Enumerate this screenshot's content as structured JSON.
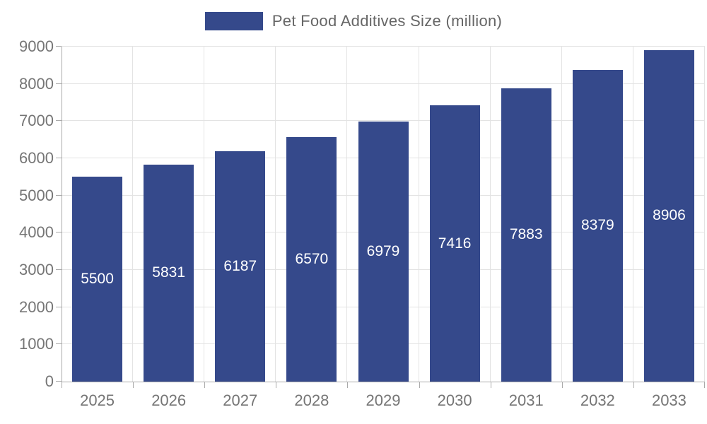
{
  "legend": {
    "label": "Pet Food Additives Size (million)"
  },
  "chart_data": {
    "type": "bar",
    "title": "Pet Food Additives Size (million)",
    "series_name": "Pet Food Additives Size (million)",
    "categories": [
      "2025",
      "2026",
      "2027",
      "2028",
      "2029",
      "2030",
      "2031",
      "2032",
      "2033"
    ],
    "values": [
      5500,
      5831,
      6187,
      6570,
      6979,
      7416,
      7883,
      8379,
      8906
    ],
    "xlabel": "",
    "ylabel": "",
    "ylim": [
      0,
      9000
    ],
    "ytick_step": 1000,
    "grid": true,
    "legend_position": "top-center",
    "bar_labels_inside": true,
    "colors": {
      "bar": "#35498B",
      "bar_label": "#ffffff",
      "axis_text": "#757575",
      "legend_text": "#666666",
      "grid": "#e3e3e3",
      "axis_line": "#aaaaaa"
    }
  }
}
